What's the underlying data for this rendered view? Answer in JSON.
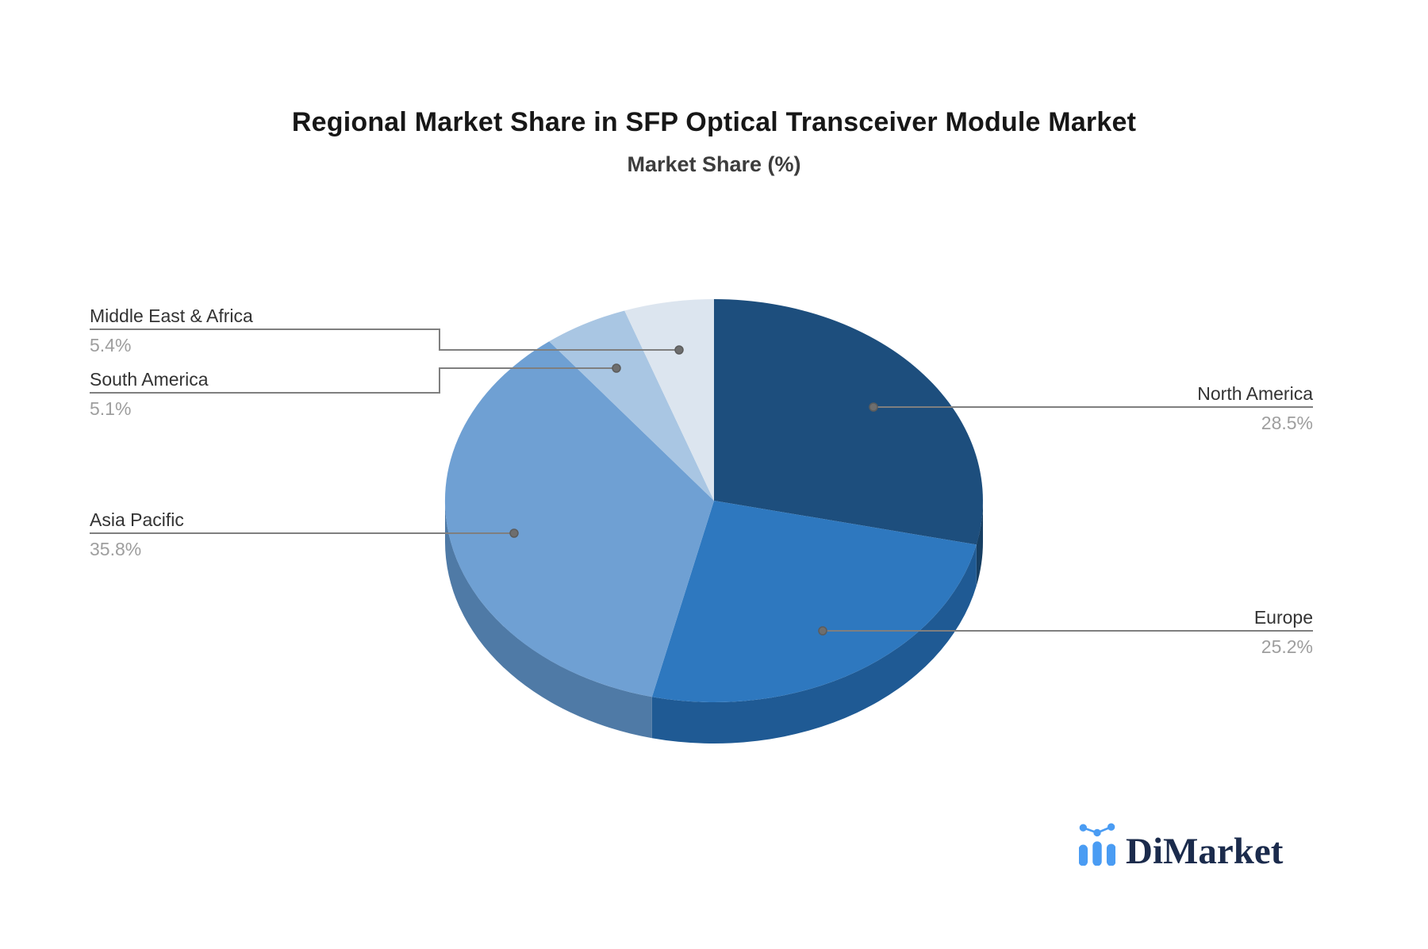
{
  "title": "Regional Market Share in SFP Optical Transceiver Module Market",
  "subtitle": "Market Share (%)",
  "chart_data": {
    "type": "pie",
    "title": "Regional Market Share in SFP Optical Transceiver Module Market",
    "subtitle": "Market Share (%)",
    "unit": "%",
    "direction": "clockwise",
    "start_angle_deg": 0,
    "legend_position": "none",
    "labels_style": "callout-leader-lines",
    "slices": [
      {
        "label": "North America",
        "value": 28.5,
        "display": "28.5%",
        "color": "#1D4E7D",
        "side_color": "#173F63"
      },
      {
        "label": "Europe",
        "value": 25.2,
        "display": "25.2%",
        "color": "#2E78BF",
        "side_color": "#1F5A94"
      },
      {
        "label": "Asia Pacific",
        "value": 35.8,
        "display": "35.8%",
        "color": "#6FA0D3",
        "side_color": "#4F7AA6"
      },
      {
        "label": "South America",
        "value": 5.1,
        "display": "5.1%",
        "color": "#A9C6E3"
      },
      {
        "label": "Middle East & Africa",
        "value": 5.4,
        "display": "5.4%",
        "color": "#DCE5EF"
      }
    ],
    "label_name_color": "#333333",
    "label_value_color": "#9E9E9E",
    "connector_color": "#7F7F7F",
    "connector_dot_color": "#6E6E6E"
  },
  "logo": {
    "text": "DiMarket",
    "icon": "bar-chart-logo-icon",
    "icon_color": "#4A9CF3",
    "text_color": "#1B2B4C"
  }
}
